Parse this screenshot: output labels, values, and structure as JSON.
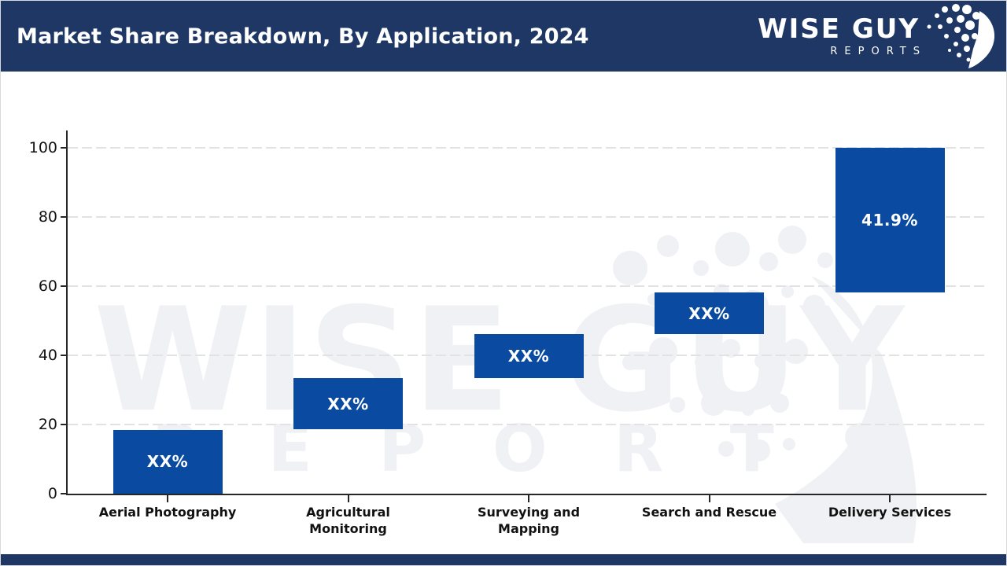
{
  "header": {
    "title": "Market Share Breakdown, By Application, 2024",
    "logo": {
      "line1": "WISE GUY",
      "line2": "REPORTS"
    }
  },
  "watermark": {
    "line1": "WISE GUY",
    "line2": "R E P O R T S"
  },
  "footer": {},
  "chart_data": {
    "type": "bar",
    "subtype": "waterfall-stacked-segments",
    "title": "Market Share Breakdown, By Application, 2024",
    "categories": [
      "Aerial Photography",
      "Agricultural Monitoring",
      "Surveying and Mapping",
      "Search and Rescue",
      "Delivery Services"
    ],
    "category_lines": [
      [
        "Aerial Photography"
      ],
      [
        "Agricultural",
        "Monitoring"
      ],
      [
        "Surveying and",
        "Mapping"
      ],
      [
        "Search and Rescue"
      ],
      [
        "Delivery Services"
      ]
    ],
    "series": [
      {
        "name": "Market Share (%)",
        "segment_start": [
          0,
          18.5,
          33.4,
          46.0,
          58.1
        ],
        "values": [
          18.5,
          14.9,
          12.6,
          12.1,
          41.9
        ]
      }
    ],
    "bar_labels": [
      "XX%",
      "XX%",
      "XX%",
      "XX%",
      "41.9%"
    ],
    "xlabel": "",
    "ylabel": "",
    "ylim": [
      0,
      105
    ],
    "yticks": [
      0,
      20,
      40,
      60,
      80,
      100
    ],
    "grid": "horizontal-dashed",
    "legend": "none",
    "colors": {
      "bar": "#0b4aa1",
      "header_band": "#1f3765",
      "footer_band": "#1f3765",
      "grid": "#e2e2e2",
      "axis": "#262626",
      "bar_label_text": "#ffffff",
      "watermark": "#f0f1f4"
    }
  }
}
